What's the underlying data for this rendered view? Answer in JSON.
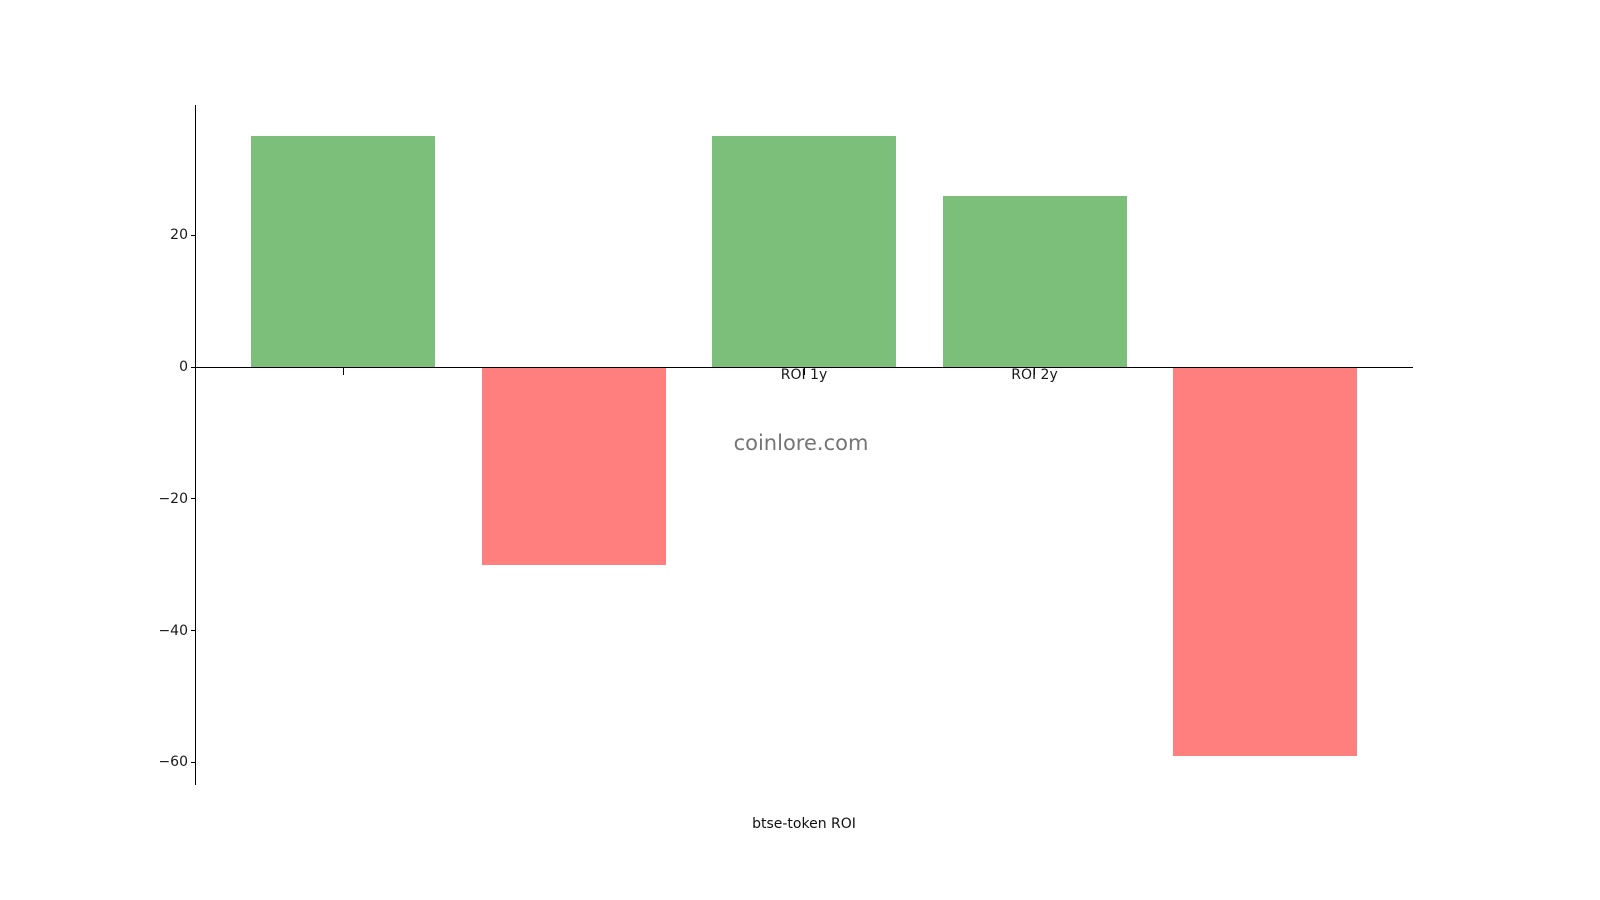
{
  "page": {
    "background": "#ffffff"
  },
  "chart_data": {
    "type": "bar",
    "title": "btse-token ROI",
    "watermark": "coinlore.com",
    "categories": [
      "",
      "",
      "ROI 1y",
      "ROI 2y",
      ""
    ],
    "values": [
      35,
      -30,
      35,
      26,
      -59
    ],
    "positive_color": "#7cbf7b",
    "negative_color": "#ff7f7f",
    "yticks": [
      {
        "label": "20",
        "value": 20
      },
      {
        "label": "0",
        "value": 0
      },
      {
        "label": "−20",
        "value": -20
      },
      {
        "label": "−40",
        "value": -40
      },
      {
        "label": "−60",
        "value": -60
      }
    ],
    "ylim": [
      -63.4,
      39.8
    ],
    "grid": false,
    "legend": null,
    "axis_color": "#000000",
    "tick_text_color": "#1a1a1a",
    "watermark_color": "#757575"
  }
}
